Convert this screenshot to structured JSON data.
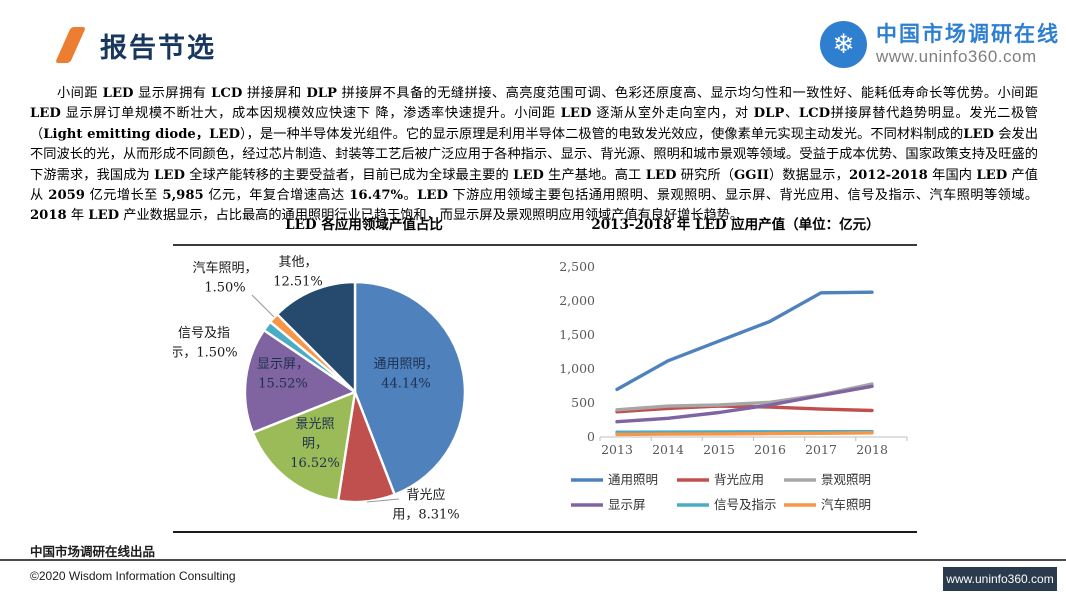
{
  "header": {
    "title": "报告节选",
    "logo": {
      "icon": "❄",
      "name": "中国市场调研在线",
      "url": "www.uninfo360.com"
    }
  },
  "paragraph": {
    "segments": [
      {
        "t": "小间距 ",
        "b": false
      },
      {
        "t": "LED",
        "b": true
      },
      {
        "t": " 显示屏拥有 ",
        "b": false
      },
      {
        "t": "LCD",
        "b": true
      },
      {
        "t": " 拼接屏和 ",
        "b": false
      },
      {
        "t": "DLP",
        "b": true
      },
      {
        "t": " 拼接屏不具备的无缝拼接、高亮度范围可调、色彩还原度高、显示均匀性和一致性好、能耗低寿命长等优势。小间距 ",
        "b": false
      },
      {
        "t": "LED",
        "b": true
      },
      {
        "t": " 显示屏订单规模不断壮大，成本因规模效应快速下 降，渗透率快速提升。小间距 ",
        "b": false
      },
      {
        "t": "LED",
        "b": true
      },
      {
        "t": " 逐渐从室外走向室内，对 ",
        "b": false
      },
      {
        "t": "DLP",
        "b": true
      },
      {
        "t": "、",
        "b": false
      },
      {
        "t": "LCD",
        "b": true
      },
      {
        "t": "拼接屏替代趋势明显。发光二极管（",
        "b": false
      },
      {
        "t": "Light emitting diode，LED",
        "b": true
      },
      {
        "t": "），是一种半导体发光组件。它的显示原理是利用半导体二极管的电致发光效应，使像素单元实现主动发光。不同材料制成的",
        "b": false
      },
      {
        "t": "LED",
        "b": true
      },
      {
        "t": " 会发出不同波长的光，从而形成不同颜色，经过芯片制造、封装等工艺后被广泛应用于各种指示、显示、背光源、照明和城市景观等领域。受益于成本优势、国家政策支持及旺盛的下游需求，我国成为 ",
        "b": false
      },
      {
        "t": "LED",
        "b": true
      },
      {
        "t": " 全球产能转移的主要受益者，目前已成为全球最主要的 ",
        "b": false
      },
      {
        "t": "LED",
        "b": true
      },
      {
        "t": " 生产基地。高工 ",
        "b": false
      },
      {
        "t": "LED",
        "b": true
      },
      {
        "t": " 研究所（",
        "b": false
      },
      {
        "t": "GGII",
        "b": true
      },
      {
        "t": "）数据显示，",
        "b": false
      },
      {
        "t": "2012-2018",
        "b": true
      },
      {
        "t": " 年国内 ",
        "b": false
      },
      {
        "t": "LED",
        "b": true
      },
      {
        "t": " 产值从 ",
        "b": false
      },
      {
        "t": "2059",
        "b": true
      },
      {
        "t": " 亿元增长至 ",
        "b": false
      },
      {
        "t": "5,985",
        "b": true
      },
      {
        "t": " 亿元，年复合增速高达 ",
        "b": false
      },
      {
        "t": "16.47%",
        "b": true
      },
      {
        "t": "。",
        "b": false
      },
      {
        "t": "LED",
        "b": true
      },
      {
        "t": " 下游应用领域主要包括通用照明、景观照明、显示屏、背光应用、信号及指示、汽车照明等领域。",
        "b": false
      },
      {
        "t": "2018",
        "b": true
      },
      {
        "t": " 年 ",
        "b": false
      },
      {
        "t": "LED",
        "b": true
      },
      {
        "t": " 产业数据显示，占比最高的通用照明行业已趋于饱和，而显示屏及景观照明应用领域产值有良好增长趋势。",
        "b": false
      }
    ]
  },
  "chart_data": [
    {
      "type": "pie",
      "title": "LED 各应用领域产值占比",
      "slices": [
        {
          "label": "通用照明",
          "value": 44.14,
          "color": "#4F81BD",
          "label_lines": [
            "通用照明，",
            "44.14%"
          ]
        },
        {
          "label": "背光应用",
          "value": 8.31,
          "color": "#C0504D",
          "label_lines": [
            "背光应",
            "用，8.31%"
          ]
        },
        {
          "label": "景光照明",
          "value": 16.52,
          "color": "#9BBB59",
          "label_lines": [
            "景光照",
            "明，",
            "16.52%"
          ]
        },
        {
          "label": "显示屏",
          "value": 15.52,
          "color": "#8064A2",
          "label_lines": [
            "显示屏，",
            "15.52%"
          ]
        },
        {
          "label": "信号及指示",
          "value": 1.5,
          "color": "#4BACC6",
          "label_lines": [
            "信号及指",
            "示，1.50%"
          ]
        },
        {
          "label": "汽车照明",
          "value": 1.5,
          "color": "#F79646",
          "label_lines": [
            "汽车照明，",
            "1.50%"
          ]
        },
        {
          "label": "其他",
          "value": 12.51,
          "color": "#264A6E",
          "label_lines": [
            "其他，",
            "12.51%"
          ]
        }
      ]
    },
    {
      "type": "line",
      "title": "2013-2018 年 LED 应用产值（单位：亿元）",
      "x": [
        "2013",
        "2014",
        "2015",
        "2016",
        "2017",
        "2018"
      ],
      "ylim": [
        0,
        2500
      ],
      "ytick_values": [
        0,
        500,
        1000,
        1500,
        2000,
        2500
      ],
      "yticks": [
        "0",
        "500",
        "1,000",
        "1,500",
        "2,000",
        "2,500"
      ],
      "grid": false,
      "legend_position": "bottom",
      "series": [
        {
          "name": "通用照明",
          "color": "#4F81BD",
          "values": [
            700,
            1120,
            1410,
            1700,
            2120,
            2130
          ]
        },
        {
          "name": "背光应用",
          "color": "#C0504D",
          "values": [
            370,
            420,
            455,
            440,
            410,
            390
          ]
        },
        {
          "name": "景观照明",
          "color": "#A6A6A6",
          "values": [
            400,
            455,
            470,
            510,
            620,
            780
          ]
        },
        {
          "name": "显示屏",
          "color": "#8064A2",
          "values": [
            225,
            275,
            360,
            470,
            610,
            745
          ]
        },
        {
          "name": "信号及指示",
          "color": "#4BACC6",
          "values": [
            70,
            72,
            74,
            76,
            78,
            80
          ]
        },
        {
          "name": "汽车照明",
          "color": "#F79646",
          "values": [
            38,
            42,
            46,
            50,
            55,
            62
          ]
        }
      ]
    }
  ],
  "footer": {
    "producer": "中国市场调研在线出品",
    "copyright": "©2020 Wisdom Information Consulting",
    "badge": "www.uninfo360.com"
  }
}
